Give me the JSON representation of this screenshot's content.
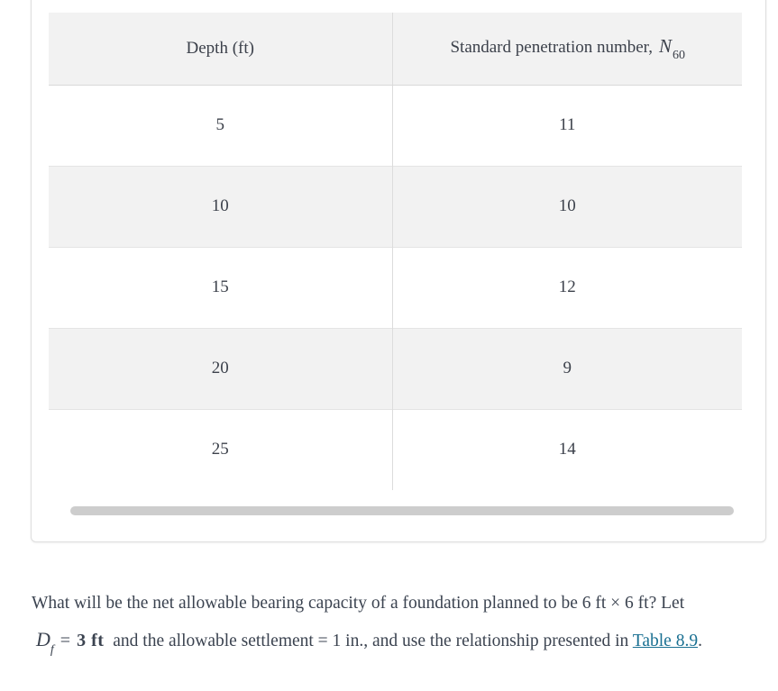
{
  "table": {
    "headers": [
      "Depth (ft)",
      "Standard penetration number,"
    ],
    "header_math": {
      "symbol": "N",
      "subscript": "60"
    },
    "rows": [
      [
        "5",
        "11"
      ],
      [
        "10",
        "10"
      ],
      [
        "15",
        "12"
      ],
      [
        "20",
        "9"
      ],
      [
        "25",
        "14"
      ]
    ]
  },
  "question": {
    "part1": "What will be the net allowable bearing capacity of a foundation planned to be 6 ft × 6 ft? Let ",
    "math": {
      "symbol": "D",
      "subscript": "f",
      "equals": "=",
      "value": "3 ft"
    },
    "part2": " and the allowable settlement = 1 in., and use the relationship presented in ",
    "link": "Table 8.9",
    "part3": "."
  },
  "colors": {
    "link": "#1a7092",
    "table_header_bg": "#f2f2f2",
    "alt_row_bg": "#f2f2f2",
    "row_border": "#e4e4e4",
    "scrollbar_thumb": "#cdcdcd",
    "paragraph_text": "#3b4350"
  }
}
